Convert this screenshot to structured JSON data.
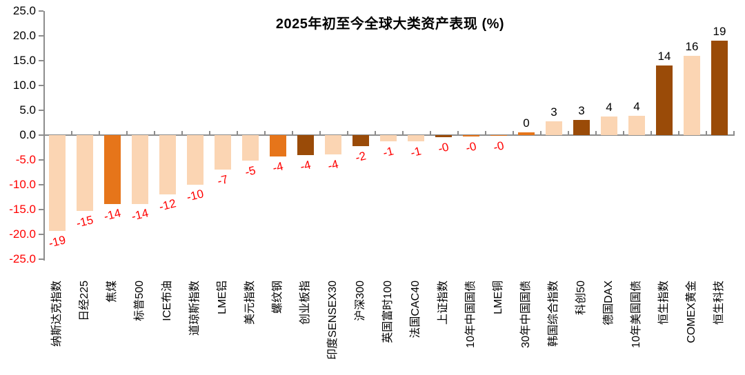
{
  "chart_data": {
    "type": "bar",
    "title": "2025年初至今全球大类资产表现 (%)",
    "xlabel": "",
    "ylabel": "",
    "ylim": [
      -25.0,
      25.0
    ],
    "y_tick_step": 5.0,
    "y_tick_labels": [
      "25.0",
      "20.0",
      "15.0",
      "10.0",
      "5.0",
      "0.0",
      "-5.0",
      "-10.0",
      "-15.0",
      "-20.0",
      "-25.0"
    ],
    "grid": "off",
    "legend": "none",
    "categories": [
      "纳斯达克指数",
      "日经225",
      "焦煤",
      "标普500",
      "ICE布油",
      "道琼斯指数",
      "LME铝",
      "美元指数",
      "螺纹钢",
      "创业板指",
      "印度SENSEX30",
      "沪深300",
      "英国富时100",
      "法国CAC40",
      "上证指数",
      "10年中国国债",
      "LME铜",
      "30年中国国债",
      "韩国综合指数",
      "科创50",
      "德国DAX",
      "10年美国国债",
      "恒生指数",
      "COMEX黄金",
      "恒生科技"
    ],
    "values": [
      -19.3,
      -15.3,
      -13.9,
      -13.9,
      -11.9,
      -10.0,
      -7.0,
      -5.1,
      -4.3,
      -4.0,
      -3.9,
      -2.2,
      -1.3,
      -1.2,
      -0.4,
      -0.3,
      -0.05,
      0.5,
      2.8,
      3.0,
      3.7,
      3.9,
      14.0,
      16.0,
      19.0
    ],
    "value_labels": [
      "-19",
      "-15",
      "-14",
      "-14",
      "-12",
      "-10",
      "-7",
      "-5",
      "-4",
      "-4",
      "-4",
      "-2",
      "-1",
      "-1",
      "-0",
      "-0",
      "-0",
      "0",
      "3",
      "3",
      "4",
      "4",
      "14",
      "16",
      "19"
    ],
    "bar_color_keys": [
      "light",
      "light",
      "orange",
      "light",
      "light",
      "light",
      "light",
      "light",
      "orange",
      "dark",
      "light",
      "dark",
      "light",
      "light",
      "dark",
      "orange",
      "orange",
      "orange",
      "light",
      "dark",
      "light",
      "light",
      "dark",
      "light",
      "dark"
    ],
    "palette": {
      "light": "#FBD5B3",
      "orange": "#E6751A",
      "dark": "#9A4B08"
    },
    "colors": {
      "positive_value_label": "#000000",
      "negative_value_label": "#FF0000",
      "positive_axis_label": "#000000",
      "negative_axis_label": "#FF0000",
      "axis_line": "#8C8C8C",
      "title": "#000000",
      "category_label": "#000000",
      "background": "#FFFFFF"
    }
  }
}
